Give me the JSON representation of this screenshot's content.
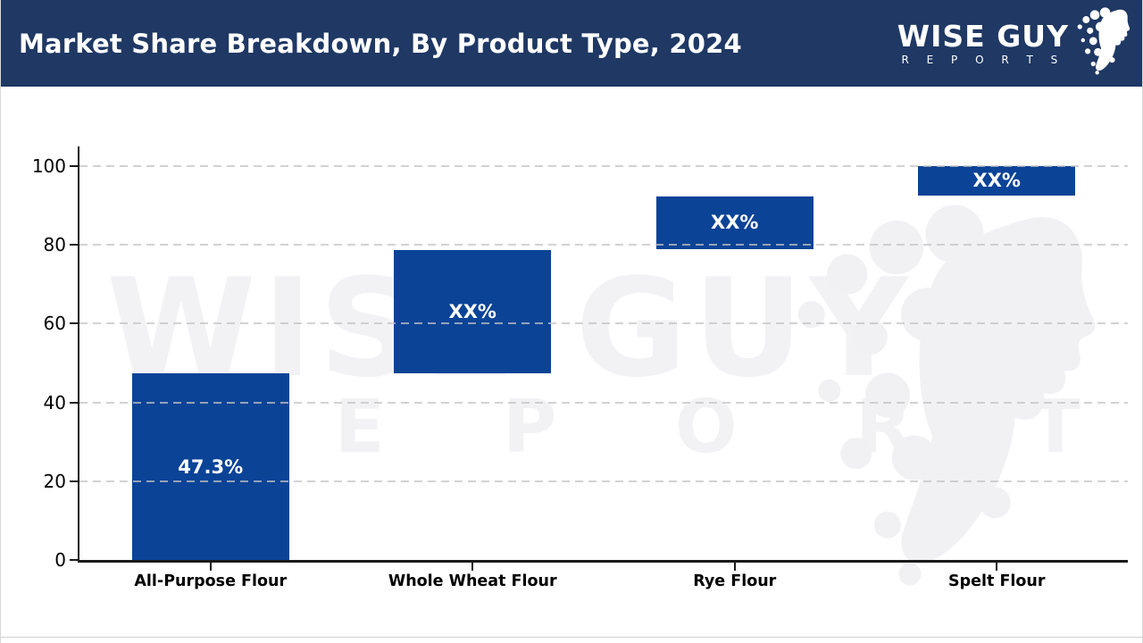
{
  "header": {
    "title": "Market Share Breakdown, By Product Type, 2024",
    "background_color": "#1f3864",
    "logo": {
      "line1": "WISE GUY",
      "line2": "R E P O R T S"
    }
  },
  "watermark": {
    "line1": "WISE GUY",
    "line2": "R E P O R T S"
  },
  "chart_data": {
    "type": "bar",
    "subtype": "waterfall",
    "title": "Market Share Breakdown, By Product Type, 2024",
    "categories": [
      "All-Purpose Flour",
      "Whole Wheat Flour",
      "Rye Flour",
      "Spelt Flour"
    ],
    "segments": [
      {
        "category": "All-Purpose Flour",
        "start": 0,
        "end": 47.3,
        "label": "47.3%"
      },
      {
        "category": "Whole Wheat Flour",
        "start": 47.3,
        "end": 78.6,
        "label": "XX%"
      },
      {
        "category": "Rye Flour",
        "start": 79.0,
        "end": 92.4,
        "label": "XX%"
      },
      {
        "category": "Spelt Flour",
        "start": 92.6,
        "end": 100,
        "label": "XX%"
      }
    ],
    "yticks": [
      0,
      20,
      40,
      60,
      80,
      100
    ],
    "ylim": [
      0,
      105
    ],
    "xlabel": "",
    "ylabel": "",
    "grid": "horizontal-dashed",
    "legend": "none",
    "bar_color": "#0b4397",
    "bar_label_color": "#ffffff",
    "axis_color": "#1a1a1a",
    "gridline_color": "#d9d9d9"
  }
}
